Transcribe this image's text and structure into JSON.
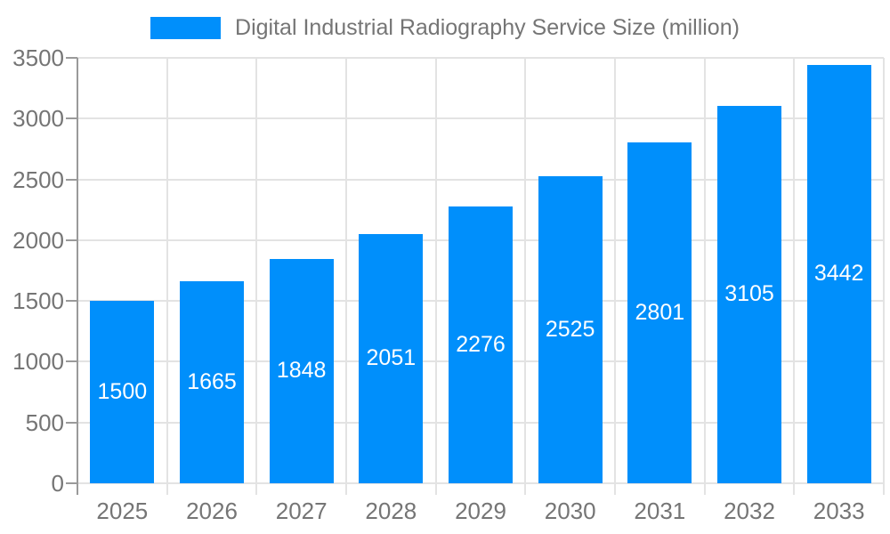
{
  "chart_data": {
    "type": "bar",
    "title": "Digital Industrial Radiography Service Size (million)",
    "categories": [
      "2025",
      "2026",
      "2027",
      "2028",
      "2029",
      "2030",
      "2031",
      "2032",
      "2033"
    ],
    "values": [
      1500,
      1665,
      1848,
      2051,
      2276,
      2525,
      2801,
      3105,
      3442
    ],
    "xlabel": "",
    "ylabel": "",
    "ylim": [
      0,
      3500
    ],
    "yticks": [
      0,
      500,
      1000,
      1500,
      2000,
      2500,
      3000,
      3500
    ],
    "grid": true,
    "legend_position": "top-center",
    "value_labels": "inside-center",
    "colors": {
      "bar": "#008FFB",
      "grid": "#e3e3e3",
      "axis": "#9a9a9a",
      "text": "#757575",
      "value_label": "#ffffff",
      "background": "#ffffff"
    }
  }
}
